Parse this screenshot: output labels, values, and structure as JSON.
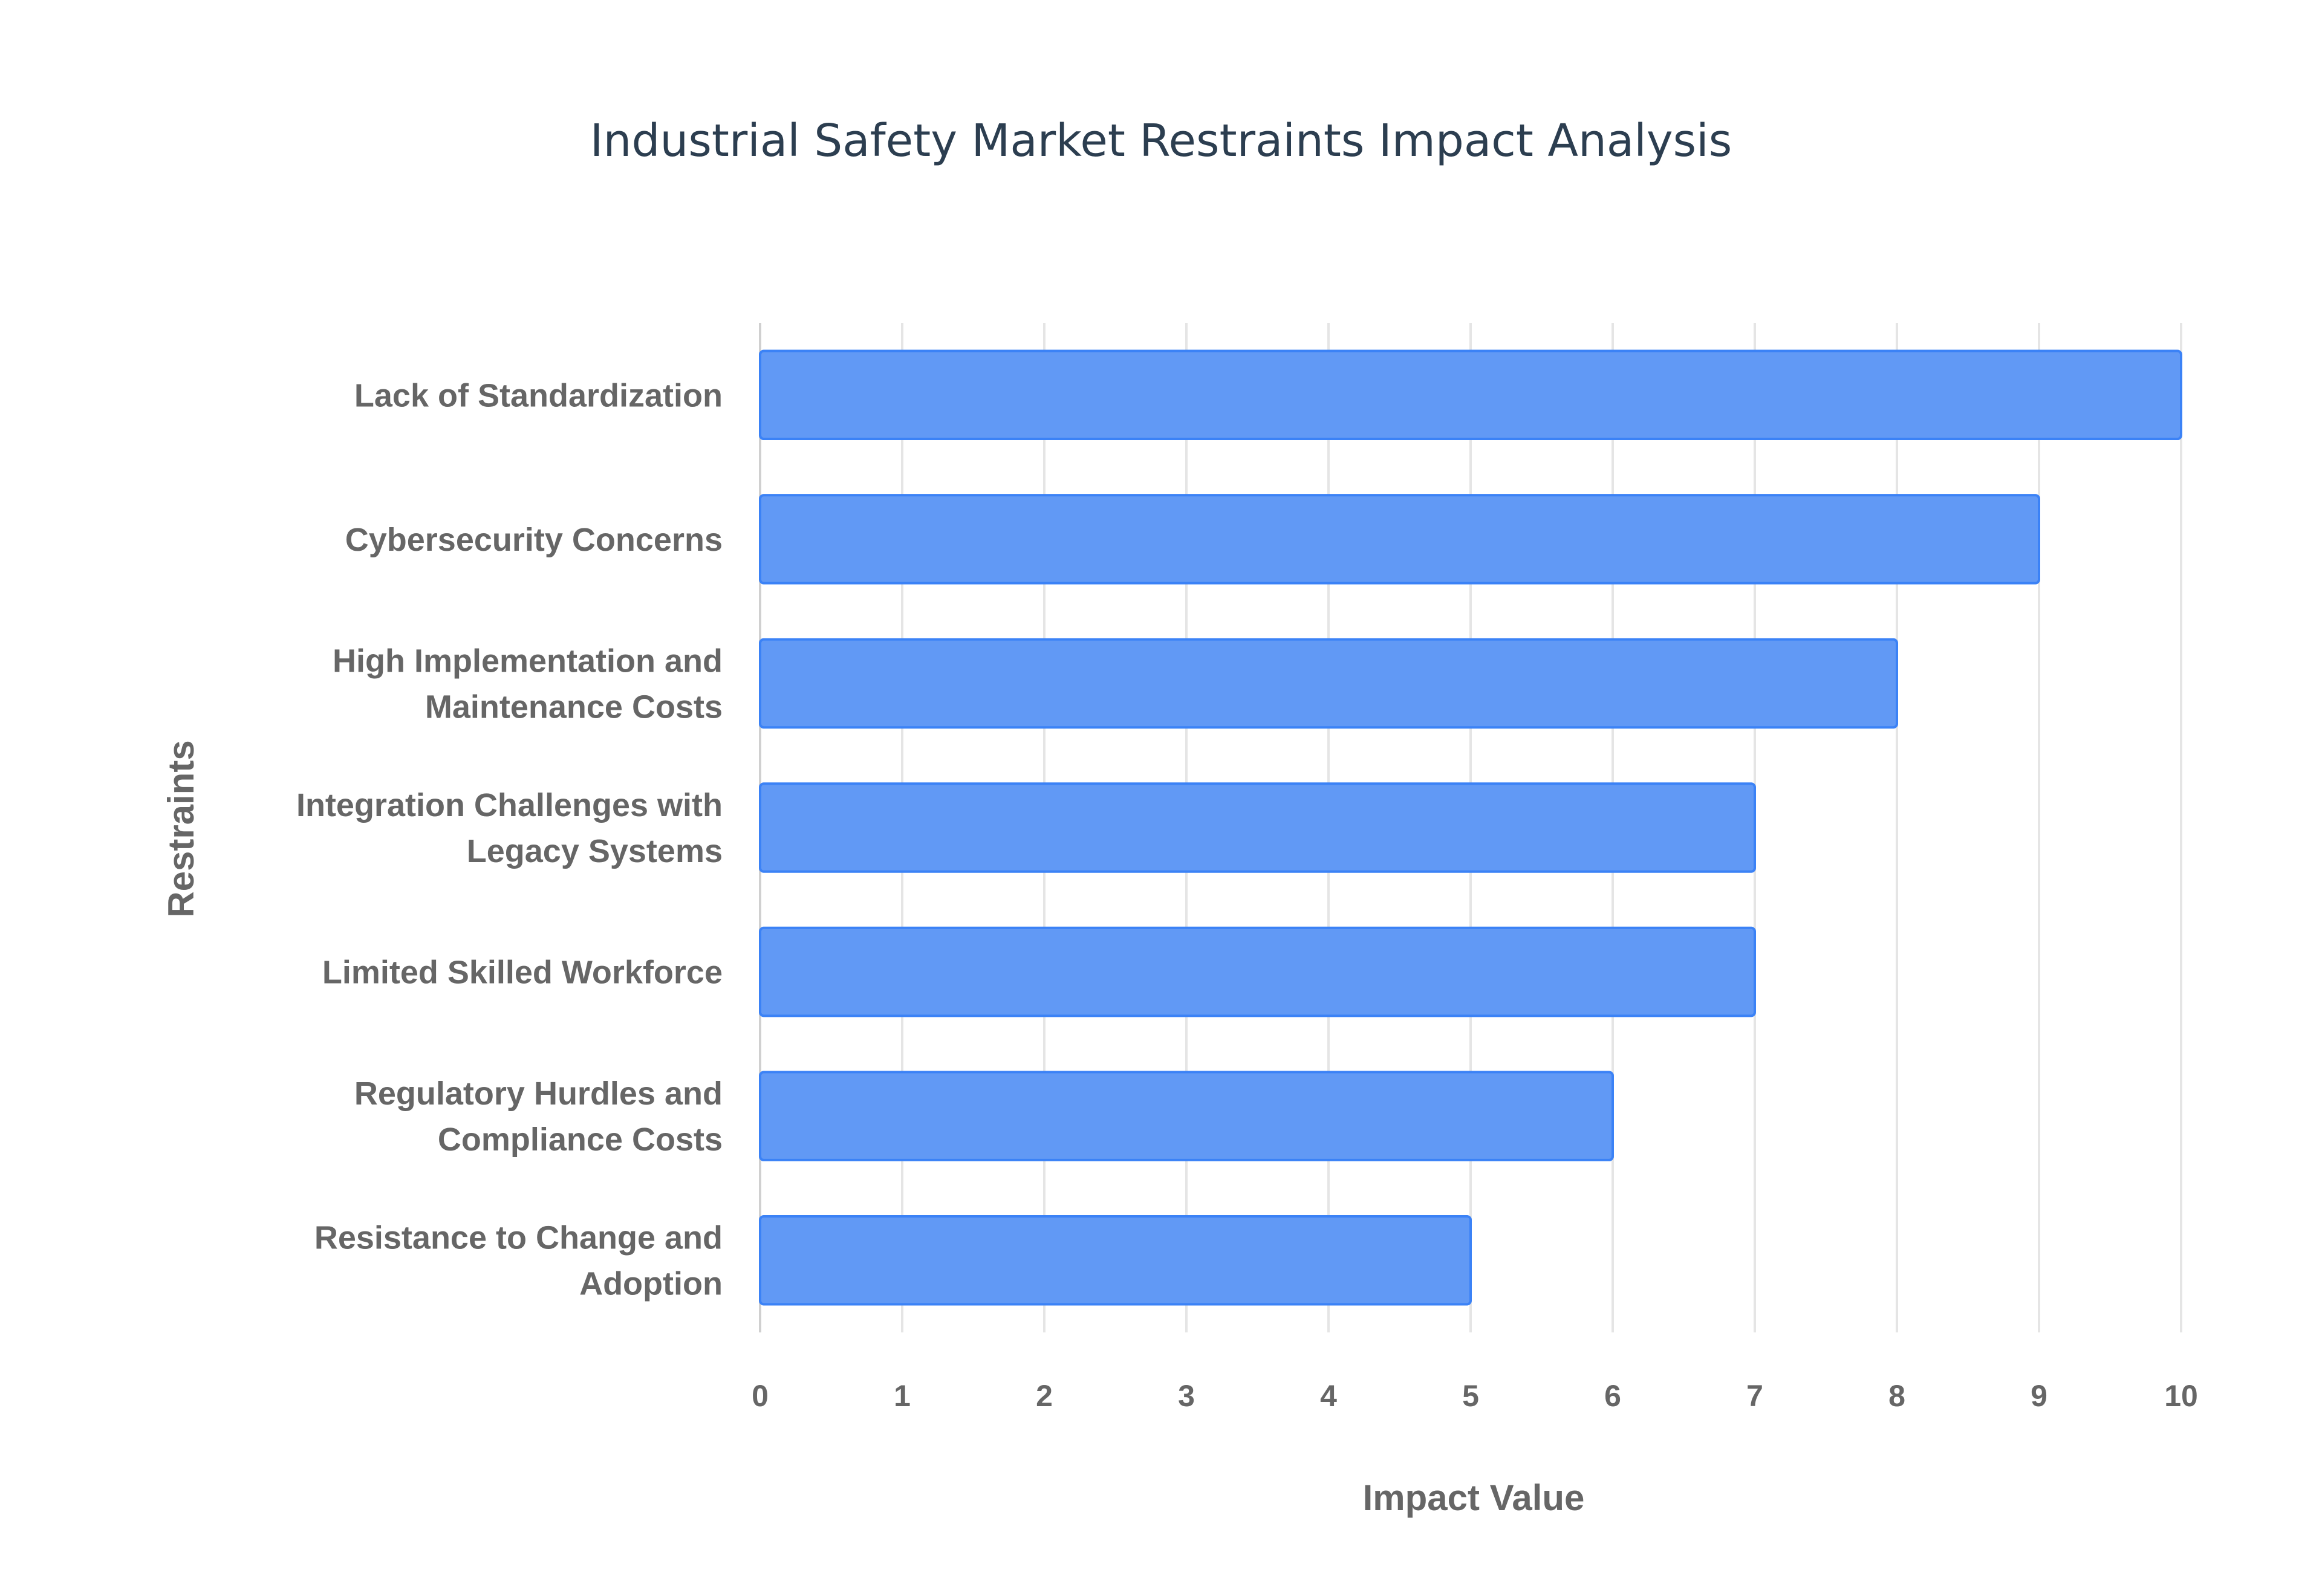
{
  "chart_data": {
    "type": "bar",
    "orientation": "horizontal",
    "title": "Industrial Safety Market Restraints Impact Analysis",
    "xlabel": "Impact Value",
    "ylabel": "Restraints",
    "categories": [
      [
        "Lack of Standardization"
      ],
      [
        "Cybersecurity Concerns"
      ],
      [
        "High Implementation and",
        "Maintenance Costs"
      ],
      [
        "Integration Challenges with",
        "Legacy Systems"
      ],
      [
        "Limited Skilled Workforce"
      ],
      [
        "Regulatory Hurdles and",
        "Compliance Costs"
      ],
      [
        "Resistance to Change and",
        "Adoption"
      ]
    ],
    "values": [
      10,
      9,
      8,
      7,
      7,
      6,
      5
    ],
    "xlim": [
      0,
      10
    ],
    "xticks": [
      "0",
      "1",
      "2",
      "3",
      "4",
      "5",
      "6",
      "7",
      "8",
      "9",
      "10"
    ],
    "grid": true,
    "legend": false,
    "colors": {
      "bar_fill": "#6199f5",
      "bar_border": "#3b82f6",
      "grid": "#e5e5e5"
    }
  }
}
